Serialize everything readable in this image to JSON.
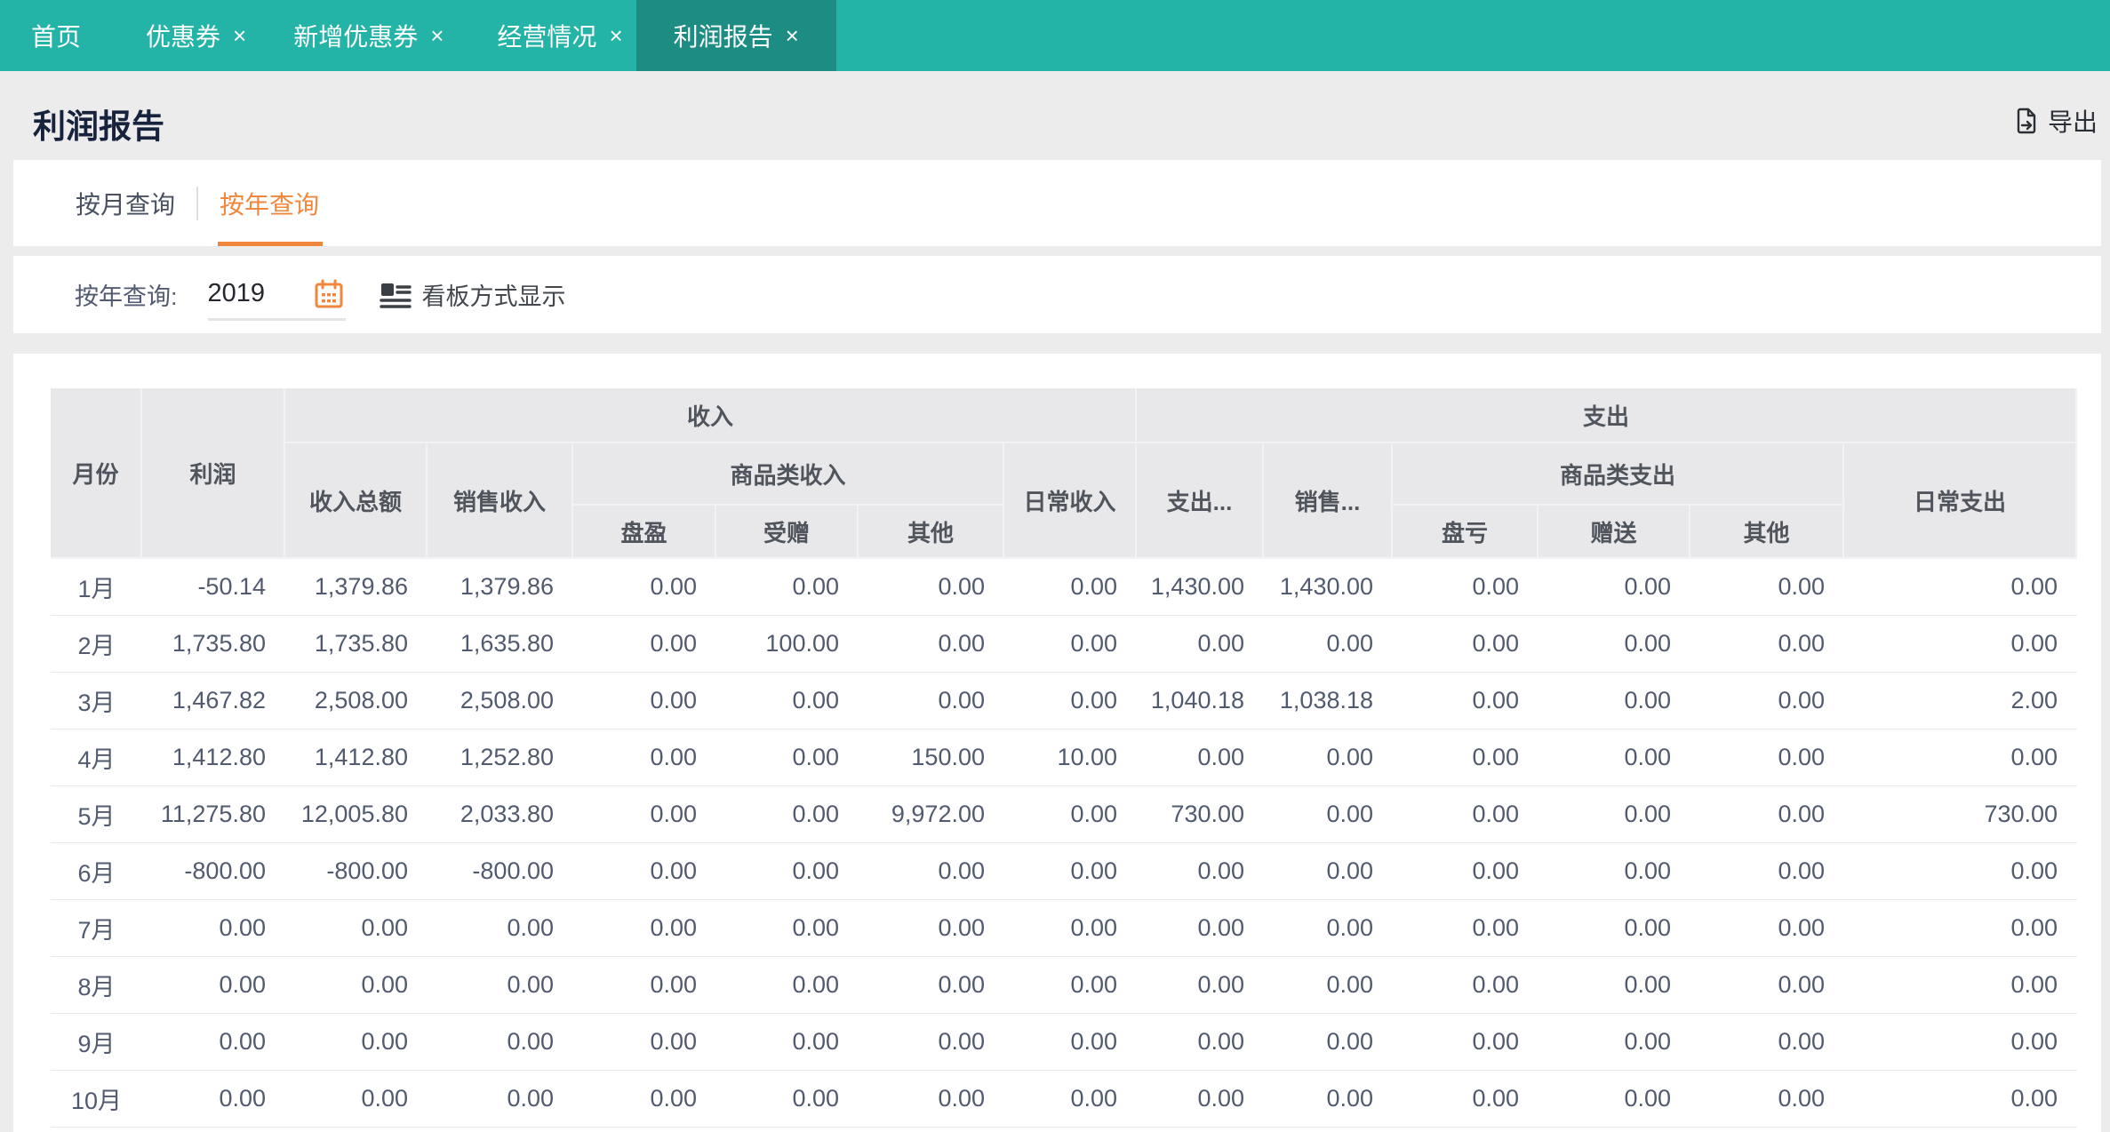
{
  "colors": {
    "topbar_teal": "#24b3a7",
    "active_tab_teal": "#1d8c83",
    "accent_orange": "#f0873d",
    "page_background": "#ececec",
    "card_background": "#ffffff",
    "table_header_background": "#e8e8ea",
    "title_text": "#17233d",
    "table_text": "#515a6e"
  },
  "top_tabs": {
    "close_glyph": "×",
    "items": [
      {
        "label": "首页",
        "closable": false,
        "active": false
      },
      {
        "label": "优惠券",
        "closable": true,
        "active": false
      },
      {
        "label": "新增优惠券",
        "closable": true,
        "active": false
      },
      {
        "label": "经营情况",
        "closable": true,
        "active": false
      },
      {
        "label": "利润报告",
        "closable": true,
        "active": true
      }
    ]
  },
  "header": {
    "title": "利润报告",
    "export_label": "导出"
  },
  "view_tabs": {
    "month_label": "按月查询",
    "year_label": "按年查询",
    "active": "按年查询"
  },
  "filter": {
    "label": "按年查询:",
    "year_value": "2019",
    "board_label": "看板方式显示"
  },
  "table": {
    "header": {
      "month": "月份",
      "profit": "利润",
      "income_group": "收入",
      "income_total": "收入总额",
      "sales_income": "销售收入",
      "goods_income_group": "商品类收入",
      "inventory_surplus": "盘盈",
      "gift_received": "受赠",
      "other_income": "其他",
      "daily_income": "日常收入",
      "expense_group": "支出",
      "expense_total": "支出...",
      "sales_expense": "销售...",
      "goods_expense_group": "商品类支出",
      "inventory_loss": "盘亏",
      "gift_given": "赠送",
      "other_expense": "其他",
      "daily_expense": "日常支出"
    },
    "rows": [
      {
        "month": "1月",
        "values": [
          "-50.14",
          "1,379.86",
          "1,379.86",
          "0.00",
          "0.00",
          "0.00",
          "0.00",
          "1,430.00",
          "1,430.00",
          "0.00",
          "0.00",
          "0.00",
          "0.00"
        ]
      },
      {
        "month": "2月",
        "values": [
          "1,735.80",
          "1,735.80",
          "1,635.80",
          "0.00",
          "100.00",
          "0.00",
          "0.00",
          "0.00",
          "0.00",
          "0.00",
          "0.00",
          "0.00",
          "0.00"
        ]
      },
      {
        "month": "3月",
        "values": [
          "1,467.82",
          "2,508.00",
          "2,508.00",
          "0.00",
          "0.00",
          "0.00",
          "0.00",
          "1,040.18",
          "1,038.18",
          "0.00",
          "0.00",
          "0.00",
          "2.00"
        ]
      },
      {
        "month": "4月",
        "values": [
          "1,412.80",
          "1,412.80",
          "1,252.80",
          "0.00",
          "0.00",
          "150.00",
          "10.00",
          "0.00",
          "0.00",
          "0.00",
          "0.00",
          "0.00",
          "0.00"
        ]
      },
      {
        "month": "5月",
        "values": [
          "11,275.80",
          "12,005.80",
          "2,033.80",
          "0.00",
          "0.00",
          "9,972.00",
          "0.00",
          "730.00",
          "0.00",
          "0.00",
          "0.00",
          "0.00",
          "730.00"
        ]
      },
      {
        "month": "6月",
        "values": [
          "-800.00",
          "-800.00",
          "-800.00",
          "0.00",
          "0.00",
          "0.00",
          "0.00",
          "0.00",
          "0.00",
          "0.00",
          "0.00",
          "0.00",
          "0.00"
        ]
      },
      {
        "month": "7月",
        "values": [
          "0.00",
          "0.00",
          "0.00",
          "0.00",
          "0.00",
          "0.00",
          "0.00",
          "0.00",
          "0.00",
          "0.00",
          "0.00",
          "0.00",
          "0.00"
        ]
      },
      {
        "month": "8月",
        "values": [
          "0.00",
          "0.00",
          "0.00",
          "0.00",
          "0.00",
          "0.00",
          "0.00",
          "0.00",
          "0.00",
          "0.00",
          "0.00",
          "0.00",
          "0.00"
        ]
      },
      {
        "month": "9月",
        "values": [
          "0.00",
          "0.00",
          "0.00",
          "0.00",
          "0.00",
          "0.00",
          "0.00",
          "0.00",
          "0.00",
          "0.00",
          "0.00",
          "0.00",
          "0.00"
        ]
      },
      {
        "month": "10月",
        "values": [
          "0.00",
          "0.00",
          "0.00",
          "0.00",
          "0.00",
          "0.00",
          "0.00",
          "0.00",
          "0.00",
          "0.00",
          "0.00",
          "0.00",
          "0.00"
        ]
      }
    ]
  }
}
